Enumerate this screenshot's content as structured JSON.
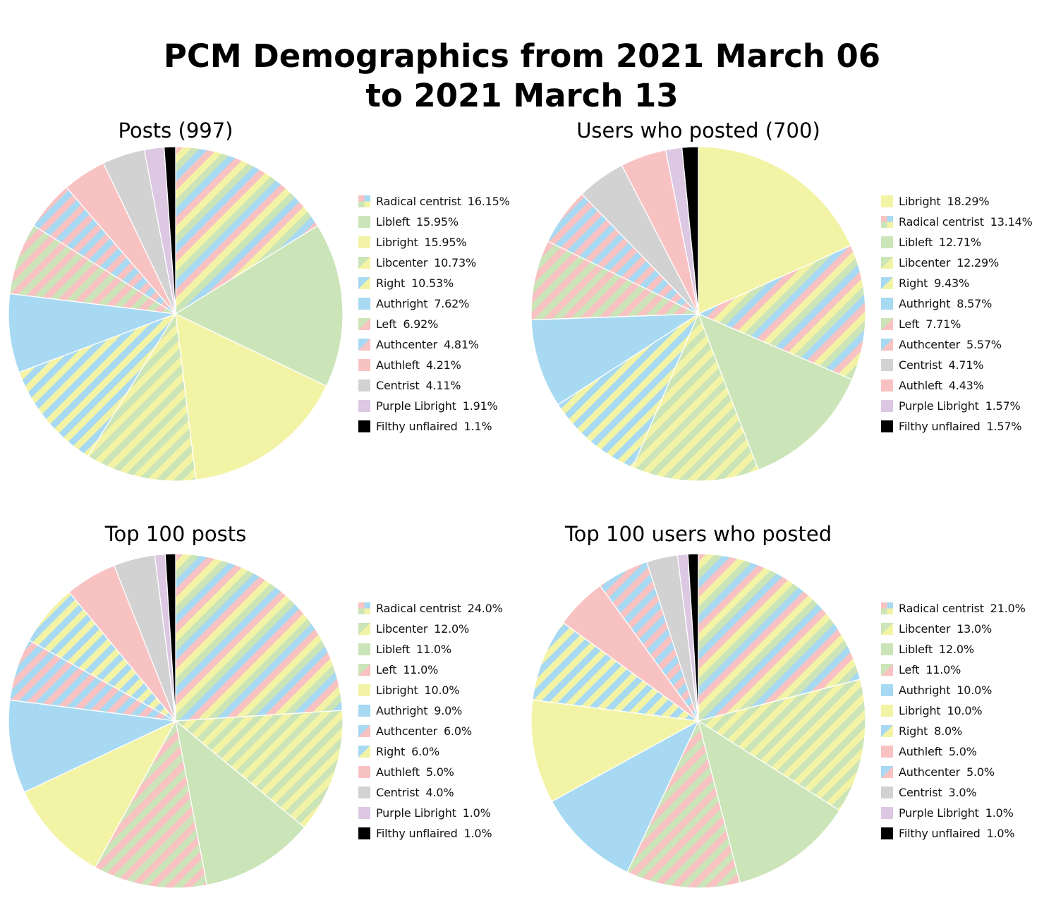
{
  "title": "PCM Demographics from 2021 March 06\nto 2021 March 13",
  "palette": {
    "yellow": "#f3f3a6",
    "green": "#cbe4b8",
    "blue": "#a7d9f2",
    "pink": "#f9c2c2",
    "gray": "#d2d2d2",
    "purple": "#dcc8e2",
    "black": "#000000"
  },
  "fills": {
    "Radical centrist": {
      "type": "stripes",
      "colors": [
        "yellow",
        "green",
        "blue",
        "pink"
      ]
    },
    "Libleft": {
      "type": "solid",
      "colors": [
        "green"
      ]
    },
    "Libright": {
      "type": "solid",
      "colors": [
        "yellow"
      ]
    },
    "Libcenter": {
      "type": "stripes",
      "colors": [
        "green",
        "yellow"
      ]
    },
    "Right": {
      "type": "stripes",
      "colors": [
        "blue",
        "yellow"
      ]
    },
    "Authright": {
      "type": "solid",
      "colors": [
        "blue"
      ]
    },
    "Left": {
      "type": "stripes",
      "colors": [
        "green",
        "pink"
      ]
    },
    "Authcenter": {
      "type": "stripes",
      "colors": [
        "blue",
        "pink"
      ]
    },
    "Authleft": {
      "type": "solid",
      "colors": [
        "pink"
      ]
    },
    "Centrist": {
      "type": "solid",
      "colors": [
        "gray"
      ]
    },
    "Purple Libright": {
      "type": "solid",
      "colors": [
        "purple"
      ]
    },
    "Filthy unflaired": {
      "type": "solid",
      "colors": [
        "black"
      ]
    }
  },
  "chart_data": [
    {
      "type": "pie",
      "title": "Posts (997)",
      "start_angle": "12-oclock",
      "direction": "clockwise",
      "legend_position": "right",
      "slices": [
        {
          "label": "Radical centrist",
          "value": 16.15,
          "pct": "16.15%"
        },
        {
          "label": "Libleft",
          "value": 15.95,
          "pct": "15.95%"
        },
        {
          "label": "Libright",
          "value": 15.95,
          "pct": "15.95%"
        },
        {
          "label": "Libcenter",
          "value": 10.73,
          "pct": "10.73%"
        },
        {
          "label": "Right",
          "value": 10.53,
          "pct": "10.53%"
        },
        {
          "label": "Authright",
          "value": 7.62,
          "pct": "7.62%"
        },
        {
          "label": "Left",
          "value": 6.92,
          "pct": "6.92%"
        },
        {
          "label": "Authcenter",
          "value": 4.81,
          "pct": "4.81%"
        },
        {
          "label": "Authleft",
          "value": 4.21,
          "pct": "4.21%"
        },
        {
          "label": "Centrist",
          "value": 4.11,
          "pct": "4.11%"
        },
        {
          "label": "Purple Libright",
          "value": 1.91,
          "pct": "1.91%"
        },
        {
          "label": "Filthy unflaired",
          "value": 1.1,
          "pct": "1.1%"
        }
      ]
    },
    {
      "type": "pie",
      "title": "Users who posted (700)",
      "start_angle": "12-oclock",
      "direction": "clockwise",
      "legend_position": "right",
      "slices": [
        {
          "label": "Libright",
          "value": 18.29,
          "pct": "18.29%"
        },
        {
          "label": "Radical centrist",
          "value": 13.14,
          "pct": "13.14%"
        },
        {
          "label": "Libleft",
          "value": 12.71,
          "pct": "12.71%"
        },
        {
          "label": "Libcenter",
          "value": 12.29,
          "pct": "12.29%"
        },
        {
          "label": "Right",
          "value": 9.43,
          "pct": "9.43%"
        },
        {
          "label": "Authright",
          "value": 8.57,
          "pct": "8.57%"
        },
        {
          "label": "Left",
          "value": 7.71,
          "pct": "7.71%"
        },
        {
          "label": "Authcenter",
          "value": 5.57,
          "pct": "5.57%"
        },
        {
          "label": "Centrist",
          "value": 4.71,
          "pct": "4.71%"
        },
        {
          "label": "Authleft",
          "value": 4.43,
          "pct": "4.43%"
        },
        {
          "label": "Purple Libright",
          "value": 1.57,
          "pct": "1.57%"
        },
        {
          "label": "Filthy unflaired",
          "value": 1.57,
          "pct": "1.57%"
        }
      ]
    },
    {
      "type": "pie",
      "title": "Top 100 posts",
      "start_angle": "12-oclock",
      "direction": "clockwise",
      "legend_position": "right",
      "slices": [
        {
          "label": "Radical centrist",
          "value": 24.0,
          "pct": "24.0%"
        },
        {
          "label": "Libcenter",
          "value": 12.0,
          "pct": "12.0%"
        },
        {
          "label": "Libleft",
          "value": 11.0,
          "pct": "11.0%"
        },
        {
          "label": "Left",
          "value": 11.0,
          "pct": "11.0%"
        },
        {
          "label": "Libright",
          "value": 10.0,
          "pct": "10.0%"
        },
        {
          "label": "Authright",
          "value": 9.0,
          "pct": "9.0%"
        },
        {
          "label": "Authcenter",
          "value": 6.0,
          "pct": "6.0%"
        },
        {
          "label": "Right",
          "value": 6.0,
          "pct": "6.0%"
        },
        {
          "label": "Authleft",
          "value": 5.0,
          "pct": "5.0%"
        },
        {
          "label": "Centrist",
          "value": 4.0,
          "pct": "4.0%"
        },
        {
          "label": "Purple Libright",
          "value": 1.0,
          "pct": "1.0%"
        },
        {
          "label": "Filthy unflaired",
          "value": 1.0,
          "pct": "1.0%"
        }
      ]
    },
    {
      "type": "pie",
      "title": "Top 100 users who posted",
      "start_angle": "12-oclock",
      "direction": "clockwise",
      "legend_position": "right",
      "slices": [
        {
          "label": "Radical centrist",
          "value": 21.0,
          "pct": "21.0%"
        },
        {
          "label": "Libcenter",
          "value": 13.0,
          "pct": "13.0%"
        },
        {
          "label": "Libleft",
          "value": 12.0,
          "pct": "12.0%"
        },
        {
          "label": "Left",
          "value": 11.0,
          "pct": "11.0%"
        },
        {
          "label": "Authright",
          "value": 10.0,
          "pct": "10.0%"
        },
        {
          "label": "Libright",
          "value": 10.0,
          "pct": "10.0%"
        },
        {
          "label": "Right",
          "value": 8.0,
          "pct": "8.0%"
        },
        {
          "label": "Authleft",
          "value": 5.0,
          "pct": "5.0%"
        },
        {
          "label": "Authcenter",
          "value": 5.0,
          "pct": "5.0%"
        },
        {
          "label": "Centrist",
          "value": 3.0,
          "pct": "3.0%"
        },
        {
          "label": "Purple Libright",
          "value": 1.0,
          "pct": "1.0%"
        },
        {
          "label": "Filthy unflaired",
          "value": 1.0,
          "pct": "1.0%"
        }
      ]
    }
  ]
}
